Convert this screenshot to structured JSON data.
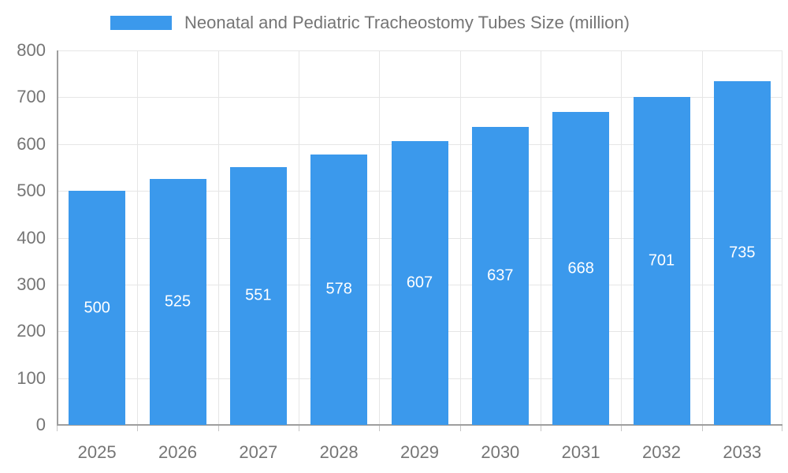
{
  "legend": {
    "label": "Neonatal and Pediatric Tracheostomy Tubes Size (million)",
    "swatch_color": "#3b99ec"
  },
  "chart_data": {
    "type": "bar",
    "title": "Neonatal and Pediatric Tracheostomy Tubes Size (million)",
    "categories": [
      "2025",
      "2026",
      "2027",
      "2028",
      "2029",
      "2030",
      "2031",
      "2032",
      "2033"
    ],
    "values": [
      500,
      525,
      551,
      578,
      607,
      637,
      668,
      701,
      735
    ],
    "xlabel": "",
    "ylabel": "",
    "ylim": [
      0,
      800
    ],
    "ytick_interval": 100,
    "yticks": [
      0,
      100,
      200,
      300,
      400,
      500,
      600,
      700,
      800
    ],
    "grid": true,
    "legend_position": "top",
    "value_labels": "inside-center",
    "colors": {
      "bar": "#3b99ec",
      "value_label": "#ffffff",
      "axis_text": "#757575",
      "gridline": "#e6e6e6",
      "axis_line": "#9e9e9e",
      "tick": "#c6c6c6",
      "background": "#ffffff"
    }
  }
}
